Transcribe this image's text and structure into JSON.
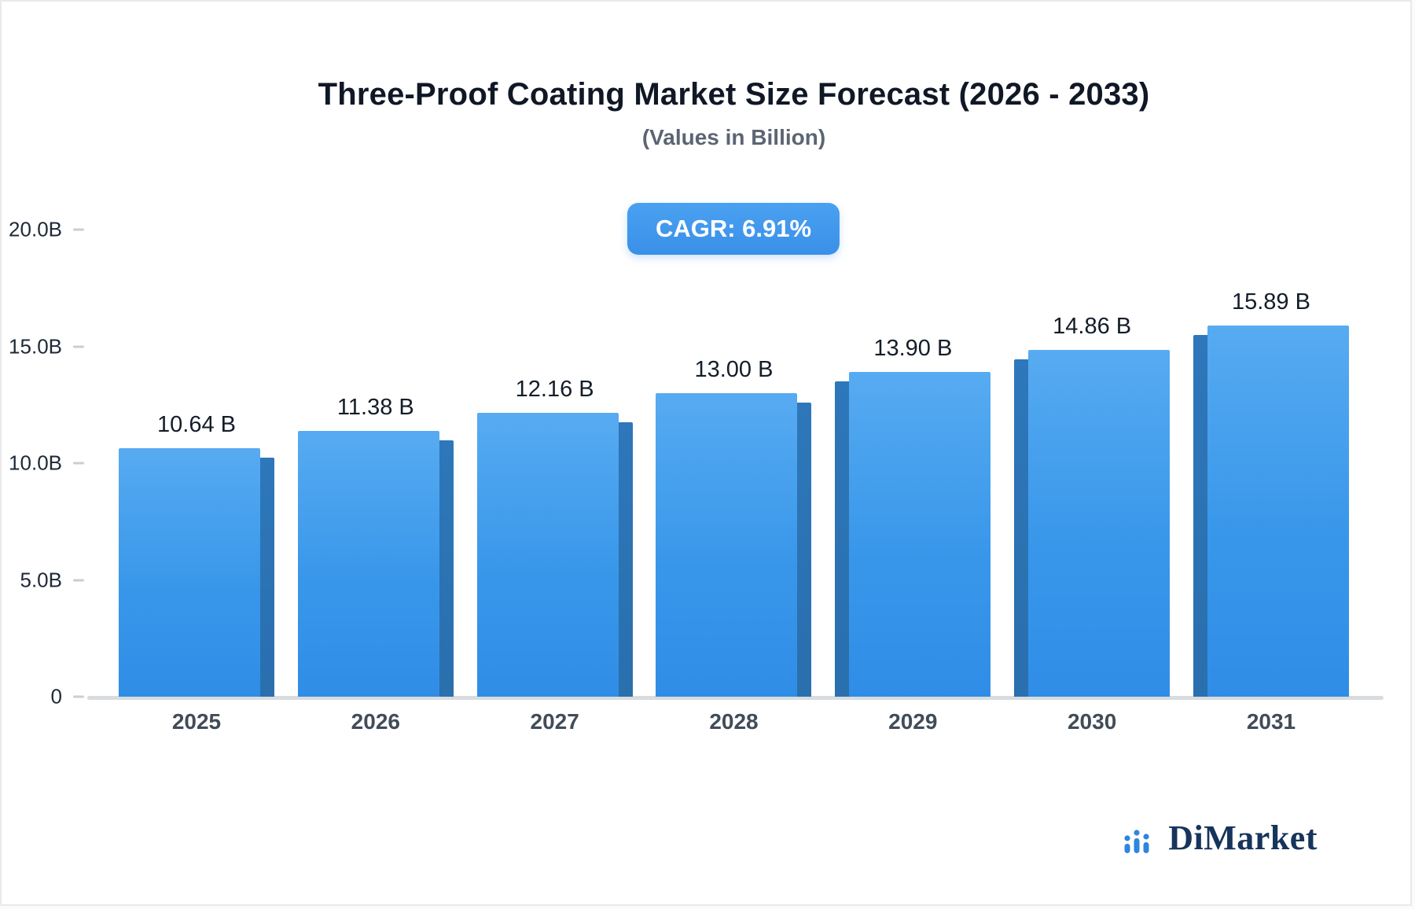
{
  "title": "Three-Proof Coating Market Size Forecast (2026 - 2033)",
  "subtitle": "(Values in Billion)",
  "badge": {
    "label": "CAGR: 6.91%"
  },
  "chart_data": {
    "type": "bar",
    "title": "Three-Proof Coating Market Size Forecast (2026 - 2033)",
    "subtitle": "(Values in Billion)",
    "categories": [
      "2025",
      "2026",
      "2027",
      "2028",
      "2029",
      "2030",
      "2031"
    ],
    "values": [
      10.64,
      11.38,
      12.16,
      13.0,
      13.9,
      14.86,
      15.89
    ],
    "value_labels": [
      "10.64 B",
      "11.38 B",
      "12.16 B",
      "13.00 B",
      "13.90 B",
      "14.86 B",
      "15.89 B"
    ],
    "xlabel": "",
    "ylabel": "",
    "ylim": [
      0,
      20
    ],
    "yticks": [
      {
        "label": "20.0B",
        "value": 20
      },
      {
        "label": "15.0B",
        "value": 15
      },
      {
        "label": "10.0B",
        "value": 10
      },
      {
        "label": "5.0B",
        "value": 5
      },
      {
        "label": "0",
        "value": 0
      }
    ],
    "grid": false,
    "legend": false,
    "annotation": "CAGR: 6.91%",
    "bar_color": "#3997EA",
    "bar_side_color": "#2B72B4",
    "side_switch_index": 4
  },
  "logo": {
    "text": "DiMarket",
    "icon": "bar-chart-icon",
    "text_color": "#16345C",
    "icon_color": "#2E86DE"
  }
}
